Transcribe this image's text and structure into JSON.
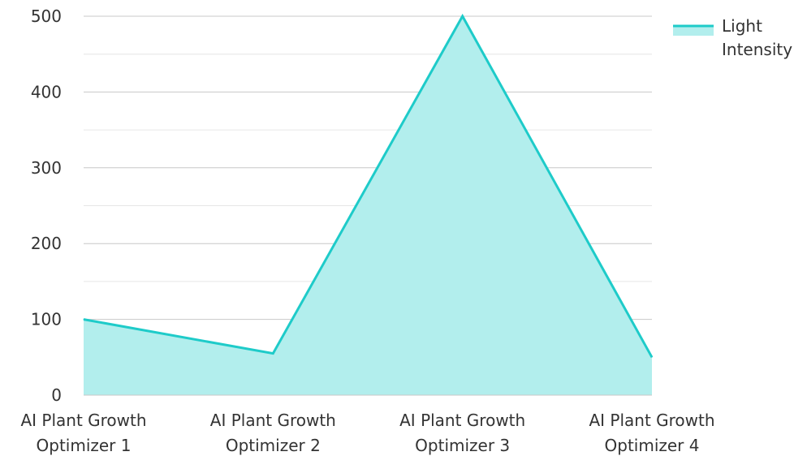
{
  "chart_data": {
    "type": "area",
    "categories": [
      [
        "AI Plant Growth",
        "Optimizer 1"
      ],
      [
        "AI Plant Growth",
        "Optimizer 2"
      ],
      [
        "AI Plant Growth",
        "Optimizer 3"
      ],
      [
        "AI Plant Growth",
        "Optimizer 4"
      ]
    ],
    "series": [
      {
        "name": [
          "Light",
          "Intensity"
        ],
        "values": [
          100,
          55,
          500,
          50
        ],
        "color": "#1ecbc9",
        "fill": "#b2eeed"
      }
    ],
    "ylim": [
      0,
      500
    ],
    "y_ticks": [
      0,
      100,
      200,
      300,
      400,
      500
    ],
    "grid": true,
    "legend": "top-right",
    "title": "",
    "xlabel": "",
    "ylabel": ""
  }
}
